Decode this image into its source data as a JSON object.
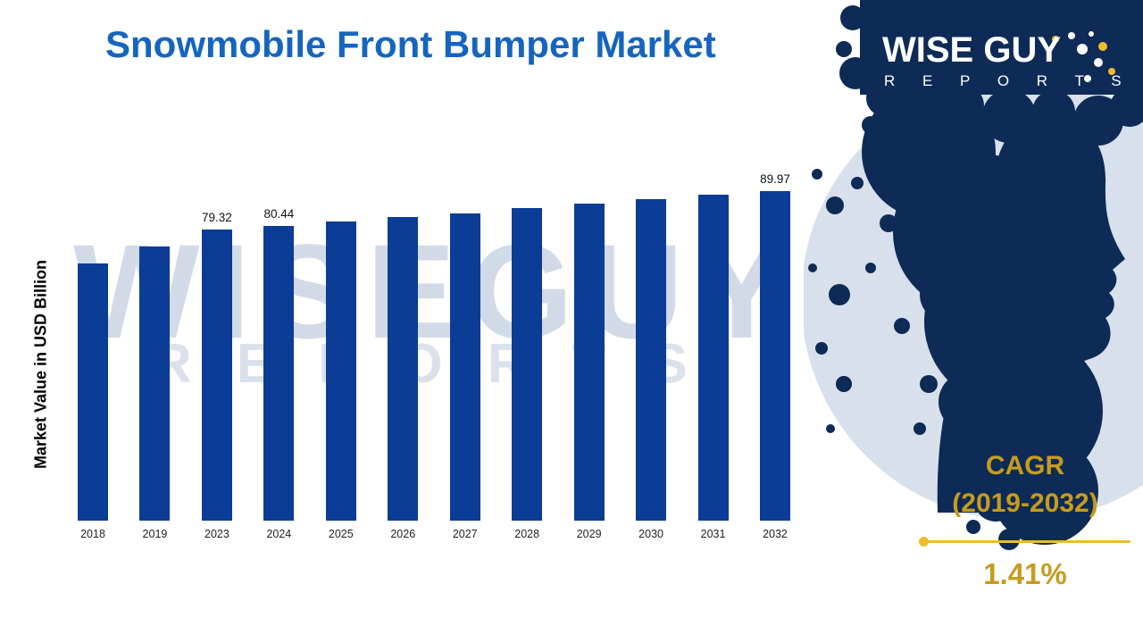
{
  "title": "Snowmobile Front Bumper Market",
  "logo": {
    "line1": "WISE GUY",
    "line2": "R E P O R T S"
  },
  "watermark": {
    "line1": "WISEGUY",
    "line2": "REPORTS"
  },
  "cagr": {
    "label": "CAGR",
    "range": "(2019-2032)",
    "value": "1.41%"
  },
  "colors": {
    "bar": "#0b3c96",
    "navy": "#0d2b56",
    "gold": "#c79b1d",
    "gold_line": "#edbd2a",
    "title_blue": "#1565c0"
  },
  "chart_data": {
    "type": "bar",
    "title": "Snowmobile Front Bumper Market",
    "xlabel": "",
    "ylabel": "Market Value in USD Billion",
    "categories": [
      "2018",
      "2019",
      "2023",
      "2024",
      "2025",
      "2026",
      "2027",
      "2028",
      "2029",
      "2030",
      "2031",
      "2032"
    ],
    "values": [
      70.1,
      74.8,
      79.32,
      80.44,
      81.6,
      82.8,
      83.9,
      85.2,
      86.4,
      87.6,
      88.8,
      89.97
    ],
    "data_labels": [
      "",
      "",
      "79.32",
      "80.44",
      "",
      "",
      "",
      "",
      "",
      "",
      "",
      "89.97"
    ],
    "bar_color": "#0b3c96",
    "ylim": [
      0,
      95
    ],
    "grid": false,
    "legend": false
  }
}
